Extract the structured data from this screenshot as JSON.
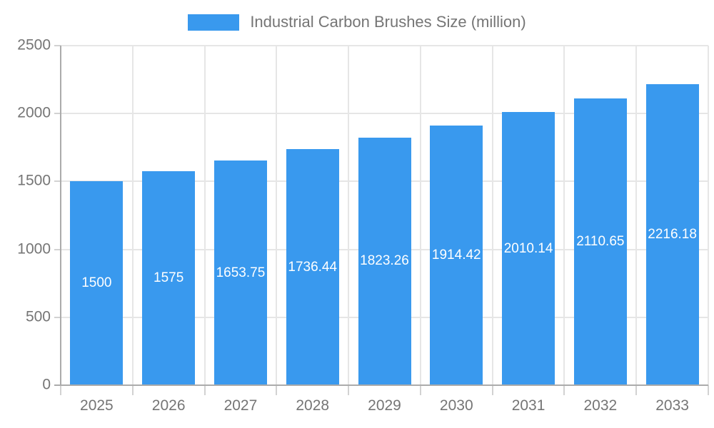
{
  "chart_data": {
    "type": "bar",
    "title": "Industrial Carbon Brushes Size (million)",
    "legend": {
      "label": "Industrial Carbon Brushes Size (million)",
      "position": "top"
    },
    "categories": [
      "2025",
      "2026",
      "2027",
      "2028",
      "2029",
      "2030",
      "2031",
      "2032",
      "2033"
    ],
    "values": [
      1500,
      1575,
      1653.75,
      1736.44,
      1823.26,
      1914.42,
      2010.14,
      2110.65,
      2216.18
    ],
    "value_labels": [
      "1500",
      "1575",
      "1653.75",
      "1736.44",
      "1823.26",
      "1914.42",
      "2010.14",
      "2110.65",
      "2216.18"
    ],
    "xlabel": "",
    "ylabel": "",
    "ylim": [
      0,
      2500
    ],
    "yticks": [
      0,
      500,
      1000,
      1500,
      2000,
      2500
    ],
    "ytick_labels": [
      "0",
      "500",
      "1000",
      "1500",
      "2000",
      "2500"
    ],
    "grid": true,
    "colors": {
      "bar": "#3999ee",
      "value_label": "#ffffff",
      "axis_text": "#757575",
      "legend_text": "#757575",
      "gridline": "#e6e6e6",
      "tick": "#d2d2d2",
      "axis_line": "#ababab",
      "background": "#ffffff"
    }
  }
}
